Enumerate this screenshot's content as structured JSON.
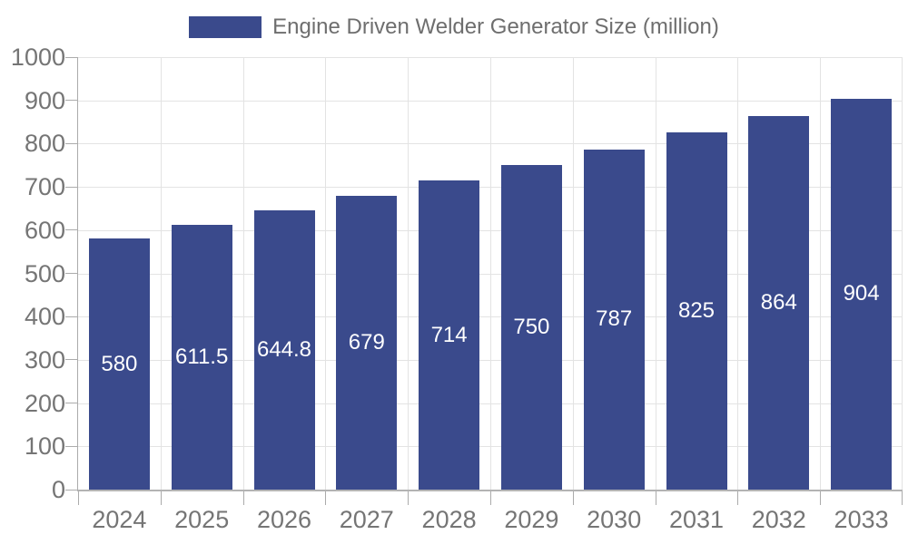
{
  "colors": {
    "bar": "#3A4A8C",
    "grid_line": "#E3E3E3",
    "axis_line": "#ABABAB",
    "axis_label": "#757575",
    "legend_text": "#6E6E6E",
    "value_label": "#FFFFFF",
    "background": "#FFFFFF"
  },
  "chart_data": {
    "type": "bar",
    "title": "Engine Driven Welder Generator Size (million)",
    "categories": [
      "2024",
      "2025",
      "2026",
      "2027",
      "2028",
      "2029",
      "2030",
      "2031",
      "2032",
      "2033"
    ],
    "values": [
      580,
      611.5,
      644.8,
      679,
      714,
      750,
      787,
      825,
      864,
      904
    ],
    "value_labels": [
      "580",
      "611.5",
      "644.8",
      "679",
      "714",
      "750",
      "787",
      "825",
      "864",
      "904"
    ],
    "series": [
      {
        "name": "Engine Driven Welder Generator Size (million)",
        "values": [
          580,
          611.5,
          644.8,
          679,
          714,
          750,
          787,
          825,
          864,
          904
        ]
      }
    ],
    "xlabel": "",
    "ylabel": "",
    "ylim": [
      0,
      1000
    ],
    "ytick_step": 100,
    "ytick_labels": [
      "0",
      "100",
      "200",
      "300",
      "400",
      "500",
      "600",
      "700",
      "800",
      "900",
      "1000"
    ],
    "grid": true,
    "legend_position": "top-center",
    "value_label_position": "center-of-bar"
  }
}
